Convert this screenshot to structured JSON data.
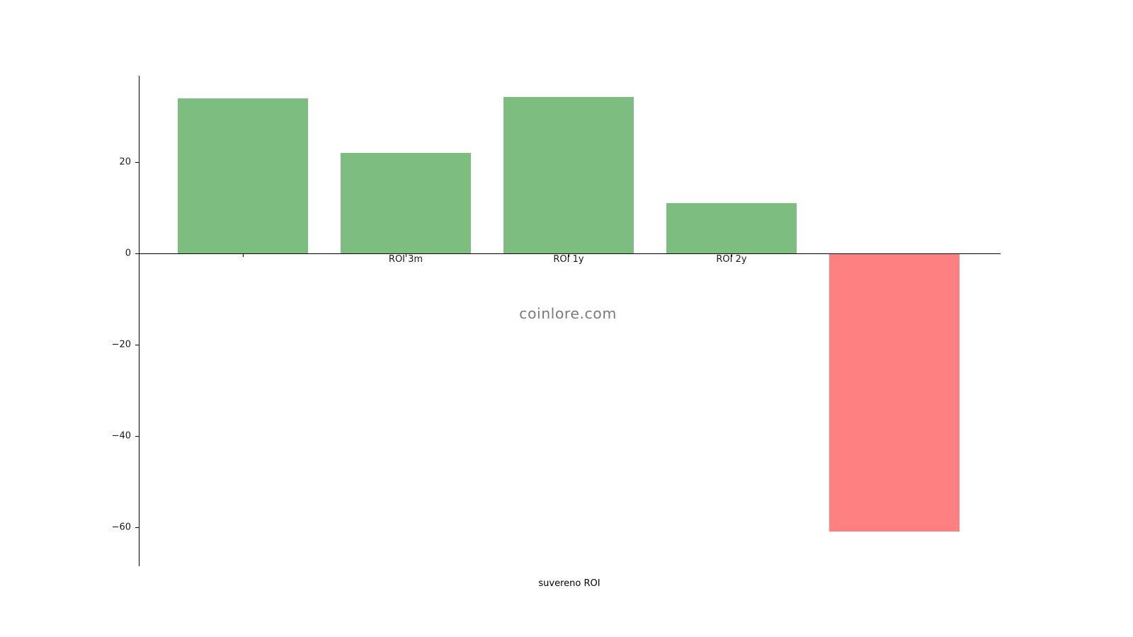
{
  "page": {
    "background": "#ffffff"
  },
  "watermark": {
    "text": "coinlore.com",
    "color": "#7b7b7b"
  },
  "chart_data": {
    "type": "bar",
    "title": "suvereno ROI",
    "xlabel": "suvereno ROI",
    "ylabel": "",
    "categories": [
      "",
      "ROI 3m",
      "ROI 1y",
      "ROI 2y",
      ""
    ],
    "values": [
      34,
      22,
      34.3,
      11,
      -61
    ],
    "positive_color": "#7dbe80",
    "negative_color": "#ff8080",
    "axis_color": "#000000",
    "yticks": [
      20,
      0,
      -20,
      -40,
      -60
    ],
    "ylim": [
      -68.5,
      38.9
    ],
    "grid": false,
    "legend_position": "none"
  }
}
